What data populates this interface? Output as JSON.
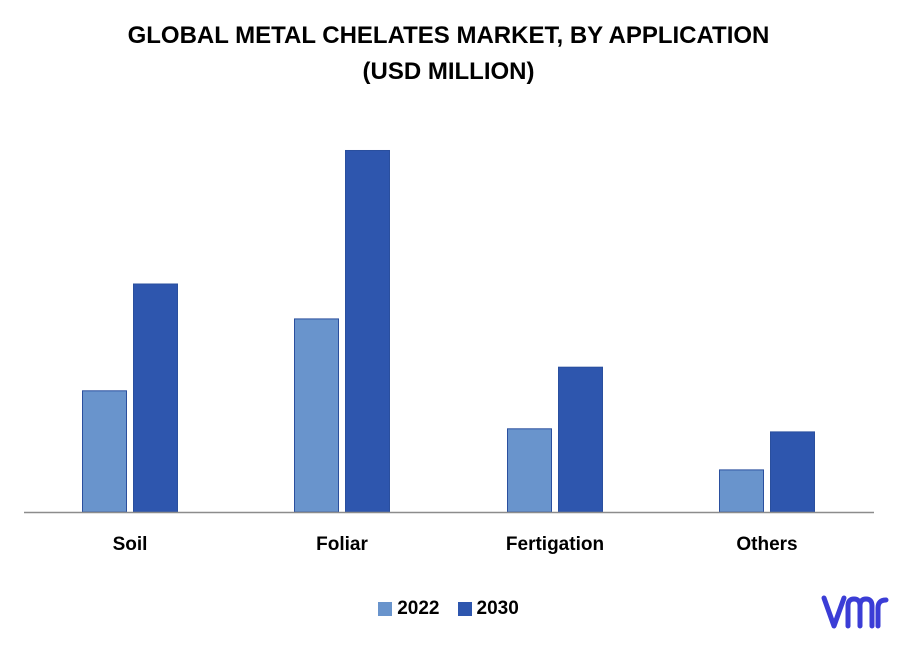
{
  "chart_data": {
    "type": "bar",
    "title": "GLOBAL METAL CHELATES MARKET, BY APPLICATION (USD MILLION)",
    "title_lines": [
      "GLOBAL METAL CHELATES MARKET, BY APPLICATION",
      "(USD MILLION)"
    ],
    "xlabel": "",
    "ylabel": "",
    "ylim": [
      0,
      370
    ],
    "grid": false,
    "legend_position": "bottom",
    "categories": [
      "Soil",
      "Foliar",
      "Fertigation",
      "Others"
    ],
    "series": [
      {
        "name": "2022",
        "color": "#6994cc",
        "values": [
          118,
          188,
          81,
          41
        ]
      },
      {
        "name": "2030",
        "color": "#2e56ae",
        "values": [
          222,
          352,
          141,
          78
        ]
      }
    ]
  },
  "logo": {
    "text": "vmr",
    "color": "#3b3dd6"
  }
}
